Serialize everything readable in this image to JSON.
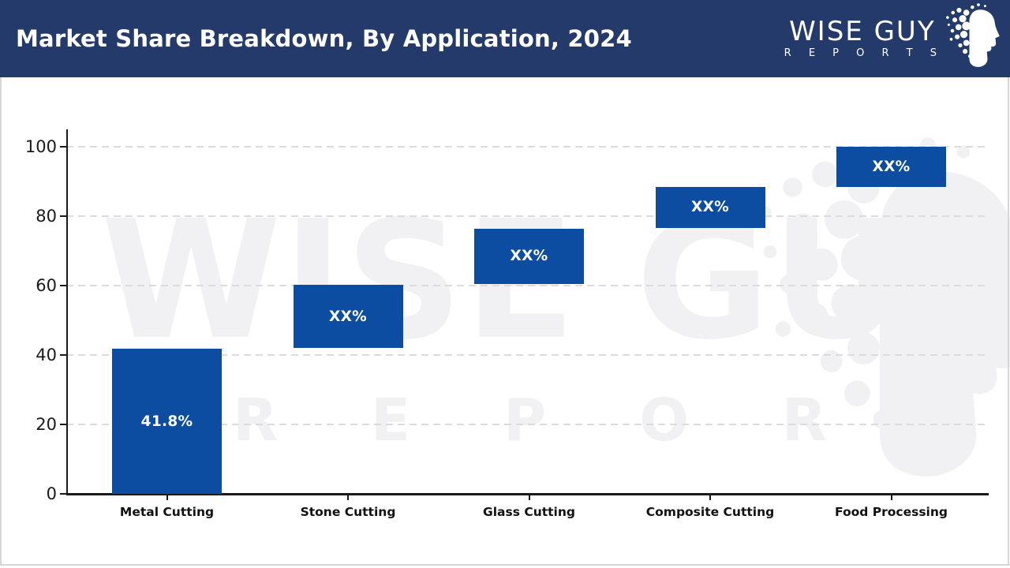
{
  "header": {
    "title": "Market Share Breakdown, By Application, 2024",
    "logo": {
      "line1": "WISE GUY",
      "line2": "R E P O R T S"
    }
  },
  "watermark": {
    "line1": "WISE GUY",
    "line2": "R E P O R T S"
  },
  "chart_data": {
    "type": "bar",
    "subtype": "waterfall",
    "title": "Market Share Breakdown, By Application, 2024",
    "xlabel": "",
    "ylabel": "",
    "categories": [
      "Metal Cutting",
      "Stone Cutting",
      "Glass Cutting",
      "Composite Cutting",
      "Food Processing"
    ],
    "segments": [
      {
        "category": "Metal Cutting",
        "start": 0,
        "end": 41.8,
        "label": "41.8%"
      },
      {
        "category": "Stone Cutting",
        "start": 42.0,
        "end": 60.2,
        "label": "XX%"
      },
      {
        "category": "Glass Cutting",
        "start": 60.5,
        "end": 76.4,
        "label": "XX%"
      },
      {
        "category": "Composite Cutting",
        "start": 76.6,
        "end": 88.4,
        "label": "XX%"
      },
      {
        "category": "Food Processing",
        "start": 88.5,
        "end": 100.1,
        "label": "XX%"
      }
    ],
    "yticks": [
      0,
      20,
      40,
      60,
      80,
      100
    ],
    "ylim": [
      0,
      105
    ],
    "grid": "dashed-horizontal",
    "legend": "none"
  },
  "colors": {
    "header_bg": "#233A6B",
    "bar": "#0C4DA2",
    "bar_label": "#FFFFFF",
    "grid": "#DCDCDC",
    "axis": "#1A1A1A",
    "watermark": "#F1F1F3",
    "frame": "#D6D6D8"
  }
}
